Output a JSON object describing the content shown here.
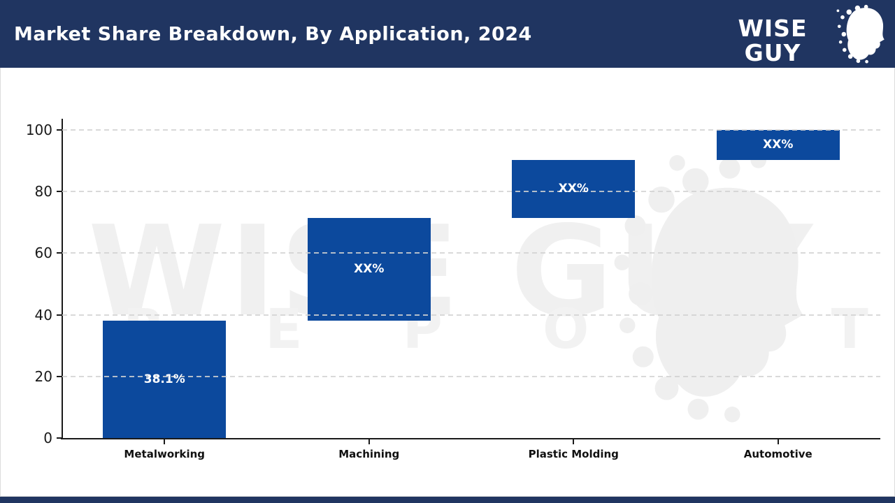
{
  "header": {
    "title": "Market Share Breakdown, By Application, 2024",
    "logo": {
      "line1": "WISE GUY",
      "line2": "R E P O R T S"
    }
  },
  "watermark": {
    "line1": "WISE GUY",
    "line2": "R E P O R T S"
  },
  "chart_data": {
    "type": "bar",
    "subtype": "waterfall",
    "title": "Market Share Breakdown, By Application, 2024",
    "categories": [
      "Metalworking",
      "Machining",
      "Plastic Molding",
      "Automotive"
    ],
    "segments": [
      {
        "category": "Metalworking",
        "start": 0,
        "end": 38.1,
        "value": 38.1,
        "label": "38.1%"
      },
      {
        "category": "Machining",
        "start": 38.1,
        "end": 71.4,
        "value": 33.3,
        "label": "XX%"
      },
      {
        "category": "Plastic Molding",
        "start": 71.4,
        "end": 90.2,
        "value": 18.8,
        "label": "XX%"
      },
      {
        "category": "Automotive",
        "start": 90.2,
        "end": 100.0,
        "value": 9.8,
        "label": "XX%"
      }
    ],
    "xlabel": "",
    "ylabel": "",
    "ylim": [
      0,
      100
    ],
    "yticks": [
      0,
      20,
      40,
      60,
      80,
      100
    ],
    "grid": "horizontal-dashed-over-bars",
    "legend": "none",
    "colors": {
      "bar": "#0c499d",
      "bar_label": "#ffffff",
      "header_bg": "#203561",
      "grid": "#d2d2d2",
      "axis": "#1a1a1a",
      "watermark": "#f0f0f0"
    }
  }
}
